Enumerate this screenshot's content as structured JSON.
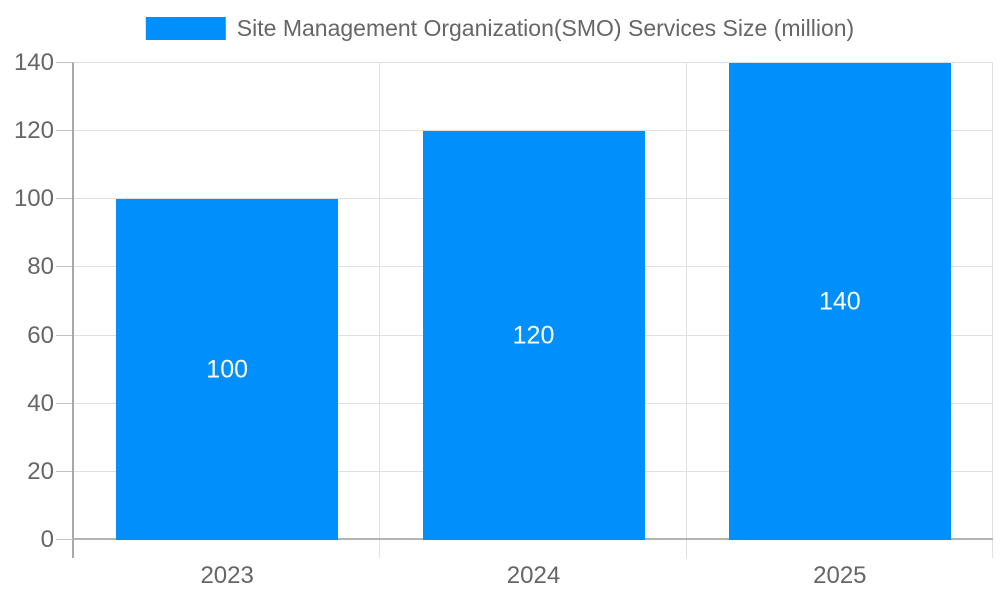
{
  "legend": {
    "label": "Site Management Organization(SMO) Services Size (million)"
  },
  "colors": {
    "accent": "#008ffb",
    "grid": "#e0e0e0",
    "tick": "#c2c2c2",
    "axis_line_y": "#a8a8a8",
    "axis_line_x": "#b3b3b3",
    "text": "#666666",
    "data_label": "#ffffff",
    "background": "#ffffff"
  },
  "chart_data": {
    "type": "bar",
    "title": "Site Management Organization(SMO) Services Size (million)",
    "series": [
      {
        "name": "Site Management Organization(SMO) Services Size (million)",
        "values": [
          100,
          120,
          140
        ]
      }
    ],
    "categories": [
      "2023",
      "2024",
      "2025"
    ],
    "data_labels": [
      "100",
      "120",
      "140"
    ],
    "xlabel": "",
    "ylabel": "",
    "ylim": [
      0,
      140
    ],
    "yticks": [
      0,
      20,
      40,
      60,
      80,
      100,
      120,
      140
    ],
    "grid": true,
    "legend_position": "top-center",
    "bar_color": "#008ffb"
  }
}
